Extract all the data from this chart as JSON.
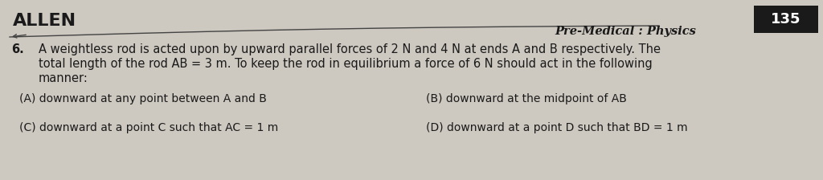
{
  "background_color": "#cdc8c0",
  "logo_text": "ALLEN",
  "header_label": "Pre-Medical : Physics",
  "page_number": "135",
  "page_number_bg": "#1a1a1a",
  "header_line_color": "#444444",
  "question_number": "6.",
  "line1": "A weightless rod is acted upon by upward parallel forces of 2 N and 4 N at ends A and B respectively. The",
  "line2": "total length of the rod AB = 3 m. To keep the rod in equilibrium a force of 6 N should act in the following",
  "line3": "manner:",
  "opt_A": "(A) downward at any point between A and B",
  "opt_B": "(B) downward at the midpoint of AB",
  "opt_C": "(C) downward at a point C such that AC = 1 m",
  "opt_D": "(D) downward at a point D such that BD = 1 m",
  "font_color": "#1a1a1a",
  "font_size_question": 10.5,
  "font_size_options": 10.0,
  "font_size_header": 10.5,
  "font_size_logo": 16,
  "font_size_qnum": 10.5,
  "page_num_fontsize": 13
}
